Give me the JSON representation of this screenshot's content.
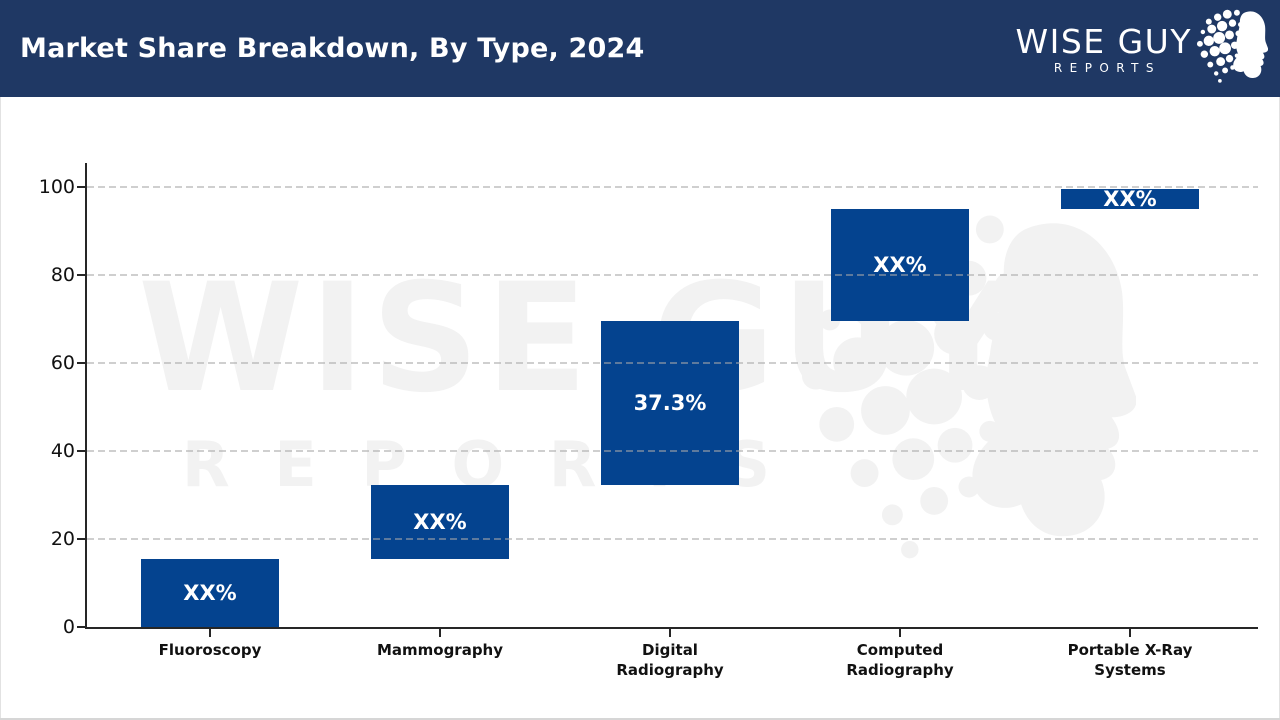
{
  "header": {
    "title": "Market Share Breakdown, By Type, 2024",
    "logo": {
      "line1": "WISE GUY",
      "line2": "REPORTS"
    }
  },
  "watermark": {
    "line1": "WISE GUY",
    "line2": "REPORTS"
  },
  "chart_data": {
    "type": "bar",
    "variant": "waterfall",
    "title": "Market Share Breakdown, By Type, 2024",
    "categories": [
      "Fluoroscopy",
      "Mammography",
      "Digital Radiography",
      "Computed Radiography",
      "Portable X-Ray Systems"
    ],
    "category_label_lines": [
      [
        "Fluoroscopy"
      ],
      [
        "Mammography"
      ],
      [
        "Digital",
        "Radiography"
      ],
      [
        "Computed",
        "Radiography"
      ],
      [
        "Portable X-Ray",
        "Systems"
      ]
    ],
    "bars": [
      {
        "category": "Fluoroscopy",
        "label": "XX%",
        "base": 0,
        "top": 15.5
      },
      {
        "category": "Mammography",
        "label": "XX%",
        "base": 15.5,
        "top": 32.3
      },
      {
        "category": "Digital Radiography",
        "label": "37.3%",
        "base": 32.3,
        "top": 69.6
      },
      {
        "category": "Computed Radiography",
        "label": "XX%",
        "base": 69.6,
        "top": 95
      },
      {
        "category": "Portable X-Ray Systems",
        "label": "XX%",
        "base": 95,
        "top": 99.5
      }
    ],
    "xlabel": "",
    "ylabel": "",
    "ylim": [
      0,
      105
    ],
    "yticks": [
      0,
      20,
      40,
      60,
      80,
      100
    ],
    "grid": "horizontal-dashed",
    "legend": "none"
  },
  "colors": {
    "header_bg": "#1f3864",
    "bar": "#04438f",
    "bar_label": "#ffffff",
    "axis": "#262626",
    "grid": "#d9d9d9",
    "tick_text": "#111111",
    "watermark": "#f2f2f2",
    "page_bg": "#ffffff",
    "bottom_border": "#d6d6d6"
  }
}
